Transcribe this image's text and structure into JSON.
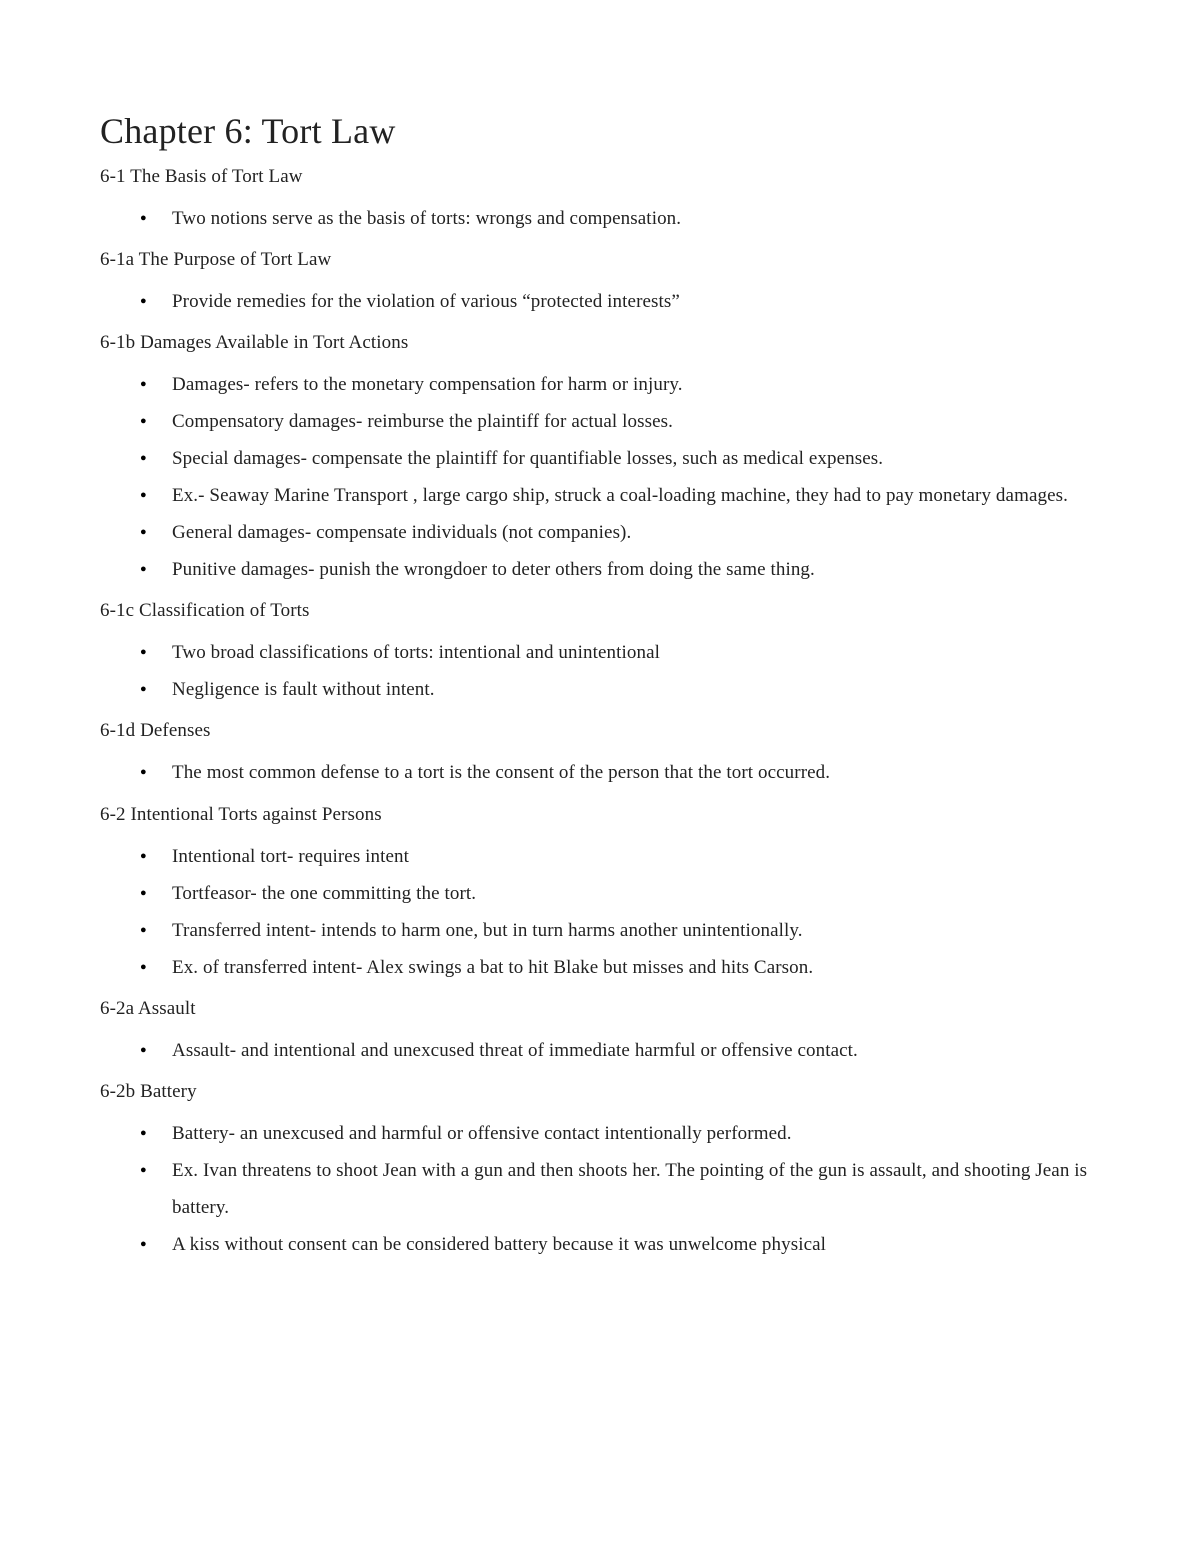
{
  "title": "Chapter 6: Tort Law",
  "sections": [
    {
      "heading": "6-1 The Basis of Tort Law",
      "bullets": [
        "Two notions serve as the basis of torts: wrongs and compensation."
      ]
    },
    {
      "heading": "6-1a The Purpose of Tort Law",
      "bullets": [
        "Provide remedies for the violation of various “protected interests”"
      ]
    },
    {
      "heading": "6-1b Damages Available in Tort Actions",
      "bullets": [
        "Damages- refers to the monetary compensation for harm or injury.",
        "Compensatory damages- reimburse the plaintiff for actual losses.",
        "Special damages- compensate the plaintiff for quantifiable losses, such as medical expenses.",
        "Ex.- Seaway Marine Transport , large cargo ship, struck a coal-loading machine, they had to pay monetary damages.",
        "General damages- compensate individuals (not companies).",
        "Punitive damages- punish the wrongdoer to deter others from doing the same thing."
      ]
    },
    {
      "heading": "6-1c Classification of Torts",
      "bullets": [
        "Two broad classifications of torts: intentional and unintentional",
        "Negligence is fault without intent."
      ]
    },
    {
      "heading": "6-1d Defenses",
      "bullets": [
        "The most common defense to a tort is the consent of the person that the tort occurred."
      ]
    },
    {
      "heading": "6-2 Intentional Torts against Persons",
      "bullets": [
        "Intentional tort- requires intent",
        "Tortfeasor- the one committing the tort.",
        "Transferred intent- intends to harm one, but in turn harms another unintentionally.",
        "Ex. of transferred intent- Alex swings a bat to hit Blake but misses and hits Carson."
      ]
    },
    {
      "heading": "6-2a Assault",
      "bullets": [
        "Assault- and intentional and unexcused threat of immediate harmful or offensive contact."
      ]
    },
    {
      "heading": "6-2b Battery",
      "bullets": [
        "Battery- an unexcused and harmful or offensive contact intentionally performed.",
        "Ex. Ivan threatens to shoot Jean with a gun and then shoots her. The pointing of the gun is assault, and shooting Jean is battery.",
        "A kiss without consent can be considered battery because it was unwelcome physical"
      ]
    }
  ]
}
